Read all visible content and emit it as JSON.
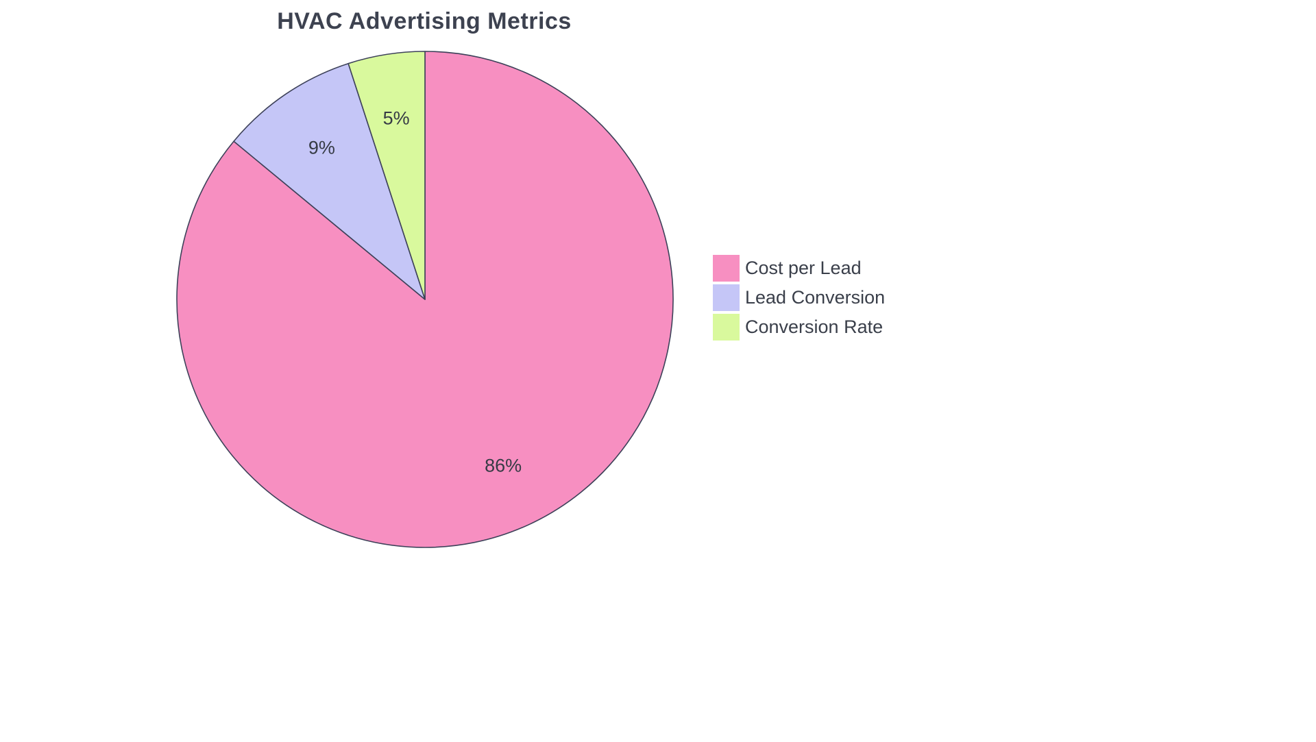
{
  "title": "HVAC Advertising Metrics",
  "chart_data": {
    "type": "pie",
    "title": "HVAC Advertising Metrics",
    "labels": [
      "Cost per Lead",
      "Lead Conversion",
      "Conversion Rate"
    ],
    "values": [
      86,
      9,
      5
    ],
    "slice_labels": [
      "86%",
      "9%",
      "5%"
    ],
    "colors": [
      "#F78FC1",
      "#C5C6F7",
      "#D9F99D"
    ],
    "stroke_color": "#3D4159",
    "start_angle_deg": 0,
    "direction": "clockwise",
    "legend_position": "right",
    "background": "#ffffff"
  },
  "legend": {
    "items": [
      {
        "label": "Cost per Lead",
        "color": "#F78FC1"
      },
      {
        "label": "Lead Conversion",
        "color": "#C5C6F7"
      },
      {
        "label": "Conversion Rate",
        "color": "#D9F99D"
      }
    ]
  }
}
